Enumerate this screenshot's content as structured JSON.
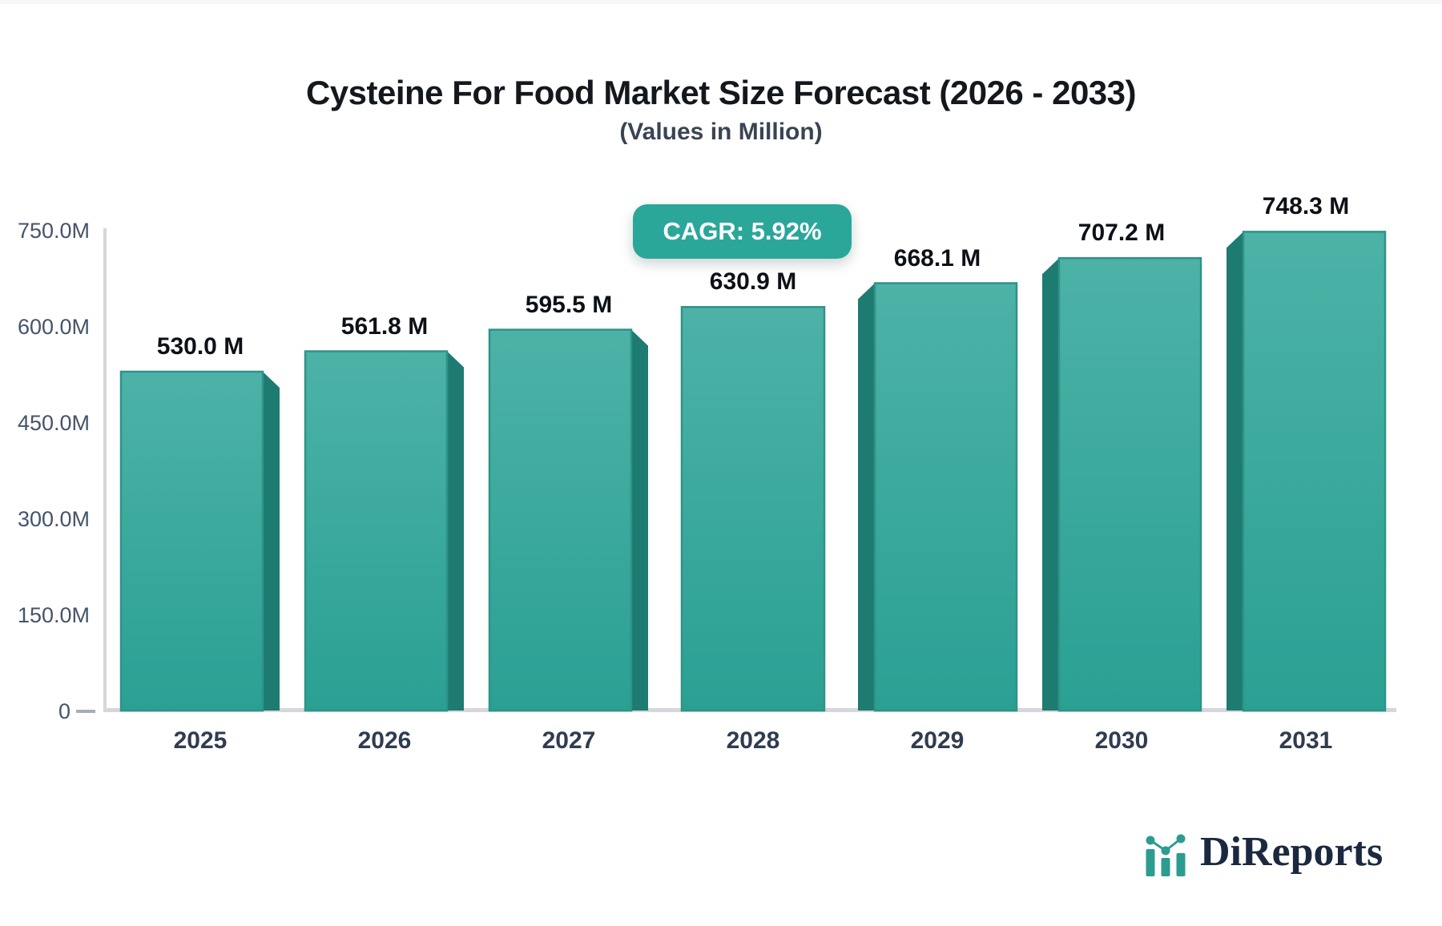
{
  "chart_data": {
    "type": "bar",
    "title": "Cysteine For Food Market Size Forecast (2026 - 2033)",
    "subtitle": "(Values in Million)",
    "annotation": "CAGR: 5.92%",
    "unit": "Million",
    "categories": [
      "2025",
      "2026",
      "2027",
      "2028",
      "2029",
      "2030",
      "2031"
    ],
    "values": [
      530.0,
      561.8,
      595.5,
      630.9,
      668.1,
      707.2,
      748.3
    ],
    "value_labels": [
      "530.0 M",
      "561.8 M",
      "595.5 M",
      "630.9 M",
      "668.1 M",
      "707.2 M",
      "748.3 M"
    ],
    "ylim": [
      0,
      750
    ],
    "grid": false,
    "legend": false,
    "y_ticks": [
      {
        "label": "750.0M",
        "value": 750
      },
      {
        "label": "600.0M",
        "value": 600
      },
      {
        "label": "450.0M",
        "value": 450
      },
      {
        "label": "300.0M",
        "value": 300
      },
      {
        "label": "150.0M",
        "value": 150
      },
      {
        "label": "0",
        "value": 0,
        "dash": true
      }
    ],
    "colors": {
      "bar_face_top": "#4DB2A7",
      "bar_face_bottom": "#2AA093",
      "bar_border": "#2E9388",
      "bar_side": "#1E7B71",
      "badge_bg": "#2BA79A",
      "axis_line": "#D5D7DD",
      "tick_text": "#44546A",
      "category_text": "#303C4F",
      "value_text": "#0D1117"
    }
  },
  "branding": {
    "logo_text": "DiReports",
    "logo_icon": "mini-bar-chart-trendline-icon",
    "logo_text_color": "#1B2940",
    "logo_icon_color": "#2D9C90"
  }
}
